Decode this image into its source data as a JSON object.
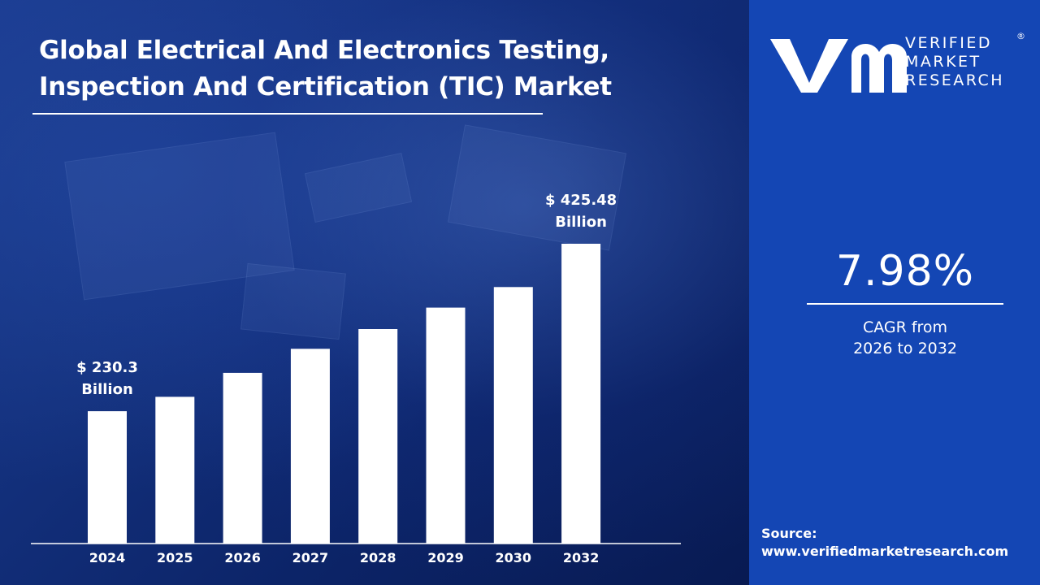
{
  "title": "Global Electrical And Electronics Testing, Inspection And Certification (TIC) Market",
  "brand": {
    "line1": "VERIFIED",
    "line2": "MARKET",
    "line3": "RESEARCH",
    "registered": "®"
  },
  "cagr": {
    "value": "7.98%",
    "label_line1": "CAGR from",
    "label_line2": "2026 to 2032"
  },
  "source": {
    "label": "Source:",
    "url": "www.verifiedmarketresearch.com"
  },
  "colors": {
    "bar": "#ffffff",
    "panel": "#1446b4",
    "background": "#10307e"
  },
  "chart_data": {
    "type": "bar",
    "title": "Global Electrical And Electronics Testing, Inspection And Certification (TIC) Market",
    "xlabel": "",
    "ylabel": "",
    "categories": [
      "2024",
      "2025",
      "2026",
      "2027",
      "2028",
      "2029",
      "2030",
      "2032"
    ],
    "values": [
      230.3,
      247,
      275,
      303,
      326,
      351,
      375,
      425.48
    ],
    "annotations": [
      {
        "category": "2024",
        "line1": "$ 230.3",
        "line2": "Billion"
      },
      {
        "category": "2032",
        "line1": "$ 425.48",
        "line2": "Billion"
      }
    ],
    "ylim": [
      76,
      432
    ],
    "grid": false,
    "legend": "none"
  }
}
